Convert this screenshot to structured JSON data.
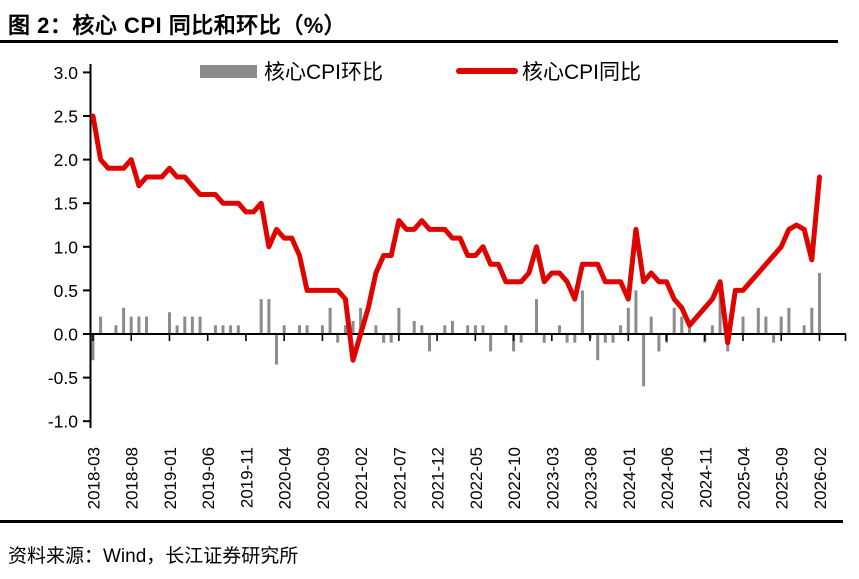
{
  "figure": {
    "title": "图 2：核心 CPI 同比和环比（%）"
  },
  "footer": {
    "source": "资料来源：Wind，长江证券研究所"
  },
  "legend": [
    {
      "label": "核心CPI环比",
      "type": "bar",
      "color": "#8C8C8C"
    },
    {
      "label": "核心CPI同比",
      "type": "line",
      "color": "#E00400"
    }
  ],
  "chart_data": {
    "type": "combo",
    "title": "核心 CPI 同比和环比（%）",
    "xlabel": "",
    "ylabel": "",
    "ylim": [
      -1.0,
      3.0
    ],
    "grid": false,
    "legend_position": "top",
    "axis_color": "#000000",
    "ytick_labels": [
      "3.0",
      "2.5",
      "2.0",
      "1.5",
      "1.0",
      "0.5",
      "0.0",
      "-0.5",
      "-1.0"
    ],
    "x_tick_labels": [
      "2018-03",
      "2018-08",
      "2019-01",
      "2019-06",
      "2019-11",
      "2020-04",
      "2020-09",
      "2021-02",
      "2021-07",
      "2021-12",
      "2022-05",
      "2022-10",
      "2023-03",
      "2023-08",
      "2024-01",
      "2024-06",
      "2024-11",
      "2025-04",
      "2025-09",
      "2026-02"
    ],
    "categories": [
      "2018-03",
      "2018-04",
      "2018-05",
      "2018-06",
      "2018-07",
      "2018-08",
      "2018-09",
      "2018-10",
      "2018-11",
      "2018-12",
      "2019-01",
      "2019-02",
      "2019-03",
      "2019-04",
      "2019-05",
      "2019-06",
      "2019-07",
      "2019-08",
      "2019-09",
      "2019-10",
      "2019-11",
      "2019-12",
      "2020-01",
      "2020-02",
      "2020-03",
      "2020-04",
      "2020-05",
      "2020-06",
      "2020-07",
      "2020-08",
      "2020-09",
      "2020-10",
      "2020-11",
      "2020-12",
      "2021-01",
      "2021-02",
      "2021-03",
      "2021-04",
      "2021-05",
      "2021-06",
      "2021-07",
      "2021-08",
      "2021-09",
      "2021-10",
      "2021-11",
      "2021-12",
      "2022-01",
      "2022-02",
      "2022-03",
      "2022-04",
      "2022-05",
      "2022-06",
      "2022-07",
      "2022-08",
      "2022-09",
      "2022-10",
      "2022-11",
      "2022-12",
      "2023-01",
      "2023-02",
      "2023-03",
      "2023-04",
      "2023-05",
      "2023-06",
      "2023-07",
      "2023-08",
      "2023-09",
      "2023-10",
      "2023-11",
      "2023-12",
      "2024-01",
      "2024-02",
      "2024-03",
      "2024-04",
      "2024-05",
      "2024-06",
      "2024-07",
      "2024-08",
      "2024-09",
      "2024-10",
      "2024-11",
      "2024-12",
      "2025-01",
      "2025-02",
      "2025-03",
      "2025-04",
      "2025-05",
      "2025-06",
      "2025-07",
      "2025-08",
      "2025-09",
      "2025-10",
      "2025-11",
      "2025-12",
      "2026-01",
      "2026-02"
    ],
    "series": [
      {
        "name": "核心CPI环比",
        "type": "bar",
        "color": "#8C8C8C",
        "values": [
          -0.3,
          0.2,
          0.0,
          0.1,
          0.3,
          0.2,
          0.2,
          0.2,
          0.0,
          0.0,
          0.25,
          0.1,
          0.2,
          0.2,
          0.2,
          0.0,
          0.1,
          0.1,
          0.1,
          0.1,
          0.0,
          0.0,
          0.4,
          0.4,
          -0.35,
          0.1,
          0.0,
          0.1,
          0.1,
          0.0,
          0.1,
          0.3,
          -0.1,
          0.1,
          0.15,
          0.3,
          0.0,
          0.1,
          -0.1,
          -0.1,
          0.3,
          0.0,
          0.15,
          0.1,
          -0.2,
          0.0,
          0.1,
          0.15,
          0.0,
          0.1,
          0.1,
          0.1,
          -0.2,
          0.0,
          0.1,
          -0.2,
          -0.1,
          0.0,
          0.4,
          -0.1,
          0.0,
          0.1,
          -0.1,
          -0.1,
          0.5,
          -0.05,
          -0.3,
          -0.1,
          -0.1,
          0.1,
          0.3,
          0.5,
          -0.6,
          0.2,
          -0.2,
          -0.1,
          0.3,
          0.2,
          0.1,
          0.0,
          -0.1,
          0.1,
          0.5,
          -0.2,
          0.0,
          0.2,
          0.0,
          0.3,
          0.2,
          -0.1,
          0.2,
          0.3,
          0.0,
          0.1,
          0.3,
          0.7
        ]
      },
      {
        "name": "核心CPI同比",
        "type": "line",
        "color": "#E00400",
        "values": [
          2.5,
          2.0,
          1.9,
          1.9,
          1.9,
          2.0,
          1.7,
          1.8,
          1.8,
          1.8,
          1.9,
          1.8,
          1.8,
          1.7,
          1.6,
          1.6,
          1.6,
          1.5,
          1.5,
          1.5,
          1.4,
          1.4,
          1.5,
          1.0,
          1.2,
          1.1,
          1.1,
          0.9,
          0.5,
          0.5,
          0.5,
          0.5,
          0.5,
          0.4,
          -0.3,
          0.0,
          0.3,
          0.7,
          0.9,
          0.9,
          1.3,
          1.2,
          1.2,
          1.3,
          1.2,
          1.2,
          1.2,
          1.1,
          1.1,
          0.9,
          0.9,
          1.0,
          0.8,
          0.8,
          0.6,
          0.6,
          0.6,
          0.7,
          1.0,
          0.6,
          0.7,
          0.7,
          0.6,
          0.4,
          0.8,
          0.8,
          0.8,
          0.6,
          0.6,
          0.6,
          0.4,
          1.2,
          0.6,
          0.7,
          0.6,
          0.6,
          0.4,
          0.3,
          0.1,
          0.2,
          0.3,
          0.4,
          0.6,
          -0.1,
          0.5,
          0.5,
          0.6,
          0.7,
          0.8,
          0.9,
          1.0,
          1.2,
          1.25,
          1.2,
          0.85,
          1.8
        ]
      }
    ]
  }
}
